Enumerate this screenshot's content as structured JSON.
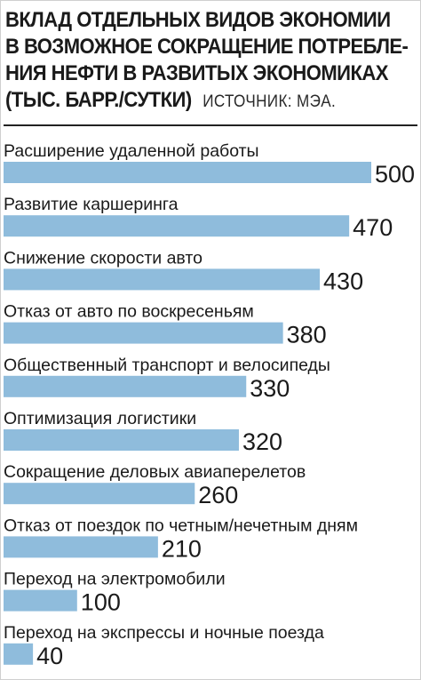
{
  "header": {
    "title_lines": [
      "ВКЛАД ОТДЕЛЬНЫХ ВИДОВ ЭКОНОМИИ",
      "В ВОЗМОЖНОЕ СОКРАЩЕНИЕ ПОТРЕБЛЕ-",
      "НИЯ НЕФТИ В РАЗВИТЫХ ЭКОНОМИКАХ",
      "(ТЫС. БАРР./СУТКИ)"
    ],
    "source": "ИСТОЧНИК: МЭА."
  },
  "colors": {
    "bar": "#8fbcdc",
    "text": "#1a1a1a"
  },
  "chart_data": {
    "type": "bar",
    "orientation": "horizontal",
    "title": "ВКЛАД ОТДЕЛЬНЫХ ВИДОВ ЭКОНОМИИ В ВОЗМОЖНОЕ СОКРАЩЕНИЕ ПОТРЕБЛЕНИЯ НЕФТИ В РАЗВИТЫХ ЭКОНОМИКАХ (ТЫС. БАРР./СУТКИ)",
    "categories": [
      "Расширение удаленной работы",
      "Развитие каршеринга",
      "Снижение скорости авто",
      "Отказ от авто по воскресеньям",
      "Общественный транспорт и велосипеды",
      "Оптимизация логистики",
      "Сокращение деловых авиаперелетов",
      "Отказ от поездок по четным/нечетным дням",
      "Переход на электромобили",
      "Переход на экспрессы и ночные поезда"
    ],
    "values": [
      500,
      470,
      430,
      380,
      330,
      320,
      260,
      210,
      100,
      40
    ],
    "xlim": [
      0,
      500
    ],
    "grid": false,
    "legend": "none"
  }
}
